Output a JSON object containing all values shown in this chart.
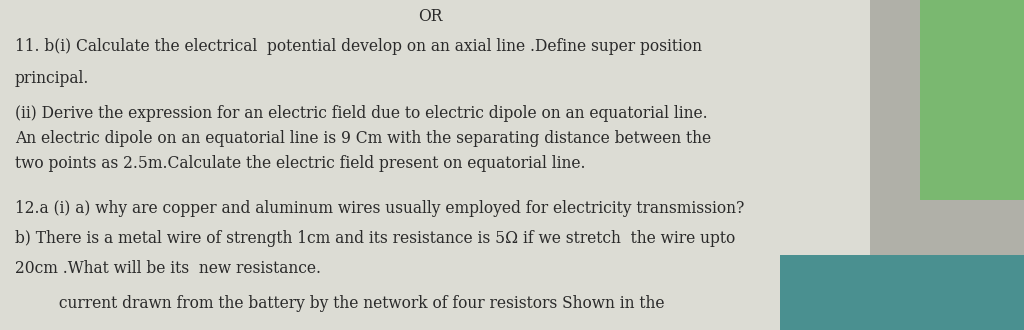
{
  "paper_color": "#e8e8e2",
  "outer_bg_color": "#c8c8c0",
  "green_color": "#7ab870",
  "teal_color": "#4a9090",
  "fig_width": 10.24,
  "fig_height": 3.3,
  "dpi": 100,
  "top_center_text": "OR",
  "line1": "11. b(i) Calculate the electrical  potential develop on an axial line .Define super position",
  "line2": "principal.",
  "line3": "(ii) Derive the expression for an electric field due to electric dipole on an equatorial line.",
  "line4": "An electric dipole on an equatorial line is 9 Cm with the separating distance between the",
  "line5": "two points as 2.5m.Calculate the electric field present on equatorial line.",
  "line6": "12.a (i) a) why are copper and aluminum wires usually employed for electricity transmission?",
  "line7": "b) There is a metal wire of strength 1cm and its resistance is 5Ω if we stretch  the wire upto",
  "line8": "20cm .What will be its  new resistance.",
  "line9": "         current drawn from the battery by the network of four resistors Shown in the",
  "text_color": "#2a2a2a",
  "font_size": 11.2,
  "font_family": "DejaVu Serif"
}
